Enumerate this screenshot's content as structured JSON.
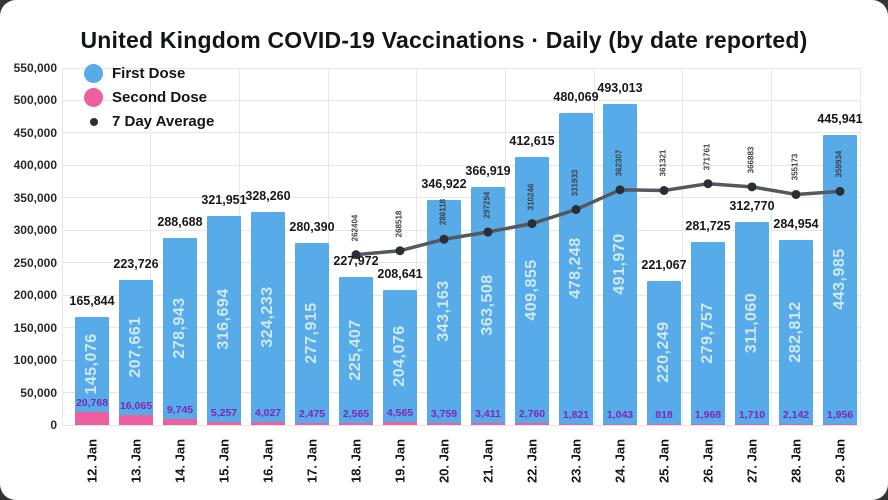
{
  "chart_data": {
    "type": "bar",
    "title": "United Kingdom COVID-19 Vaccinations · Daily (by date reported)",
    "categories": [
      "12. Jan",
      "13. Jan",
      "14. Jan",
      "15. Jan",
      "16. Jan",
      "17. Jan",
      "18. Jan",
      "19. Jan",
      "20. Jan",
      "21. Jan",
      "22. Jan",
      "23. Jan",
      "24. Jan",
      "25. Jan",
      "26. Jan",
      "27. Jan",
      "28. Jan",
      "29. Jan"
    ],
    "series": [
      {
        "name": "First Dose",
        "type": "bar",
        "stacked": true,
        "color": "#56abe8",
        "values": [
          145076,
          207661,
          278943,
          316694,
          324233,
          277915,
          225407,
          204076,
          343163,
          363508,
          409855,
          478248,
          491970,
          220249,
          279757,
          311060,
          282812,
          443985
        ]
      },
      {
        "name": "Second Dose",
        "type": "bar",
        "stacked": true,
        "color": "#ee5f9f",
        "values": [
          20768,
          16065,
          9745,
          5257,
          4027,
          2475,
          2565,
          4565,
          3759,
          3411,
          2760,
          1821,
          1043,
          818,
          1968,
          1710,
          2142,
          1956
        ]
      },
      {
        "name": "7 Day Average",
        "type": "line",
        "color": "#55585e",
        "marker_color": "#2b2e34",
        "values": [
          null,
          null,
          null,
          null,
          null,
          null,
          262404,
          268518,
          286118,
          297294,
          310246,
          331933,
          362307,
          361321,
          371761,
          366883,
          355173,
          359934
        ]
      }
    ],
    "total_labels": [
      165844,
      223726,
      288688,
      321951,
      328260,
      280390,
      227972,
      208641,
      346922,
      366919,
      412615,
      480069,
      493013,
      221067,
      281725,
      312770,
      284954,
      445941
    ],
    "ylim": [
      0,
      550000
    ],
    "ytick_step": 50000,
    "grid": true,
    "legend_position": "top-left",
    "label_colors": {
      "in_bar": "#cfe9fb",
      "second_dose": "#8326b8",
      "total": "#17181a",
      "average": "#3f4247"
    }
  }
}
